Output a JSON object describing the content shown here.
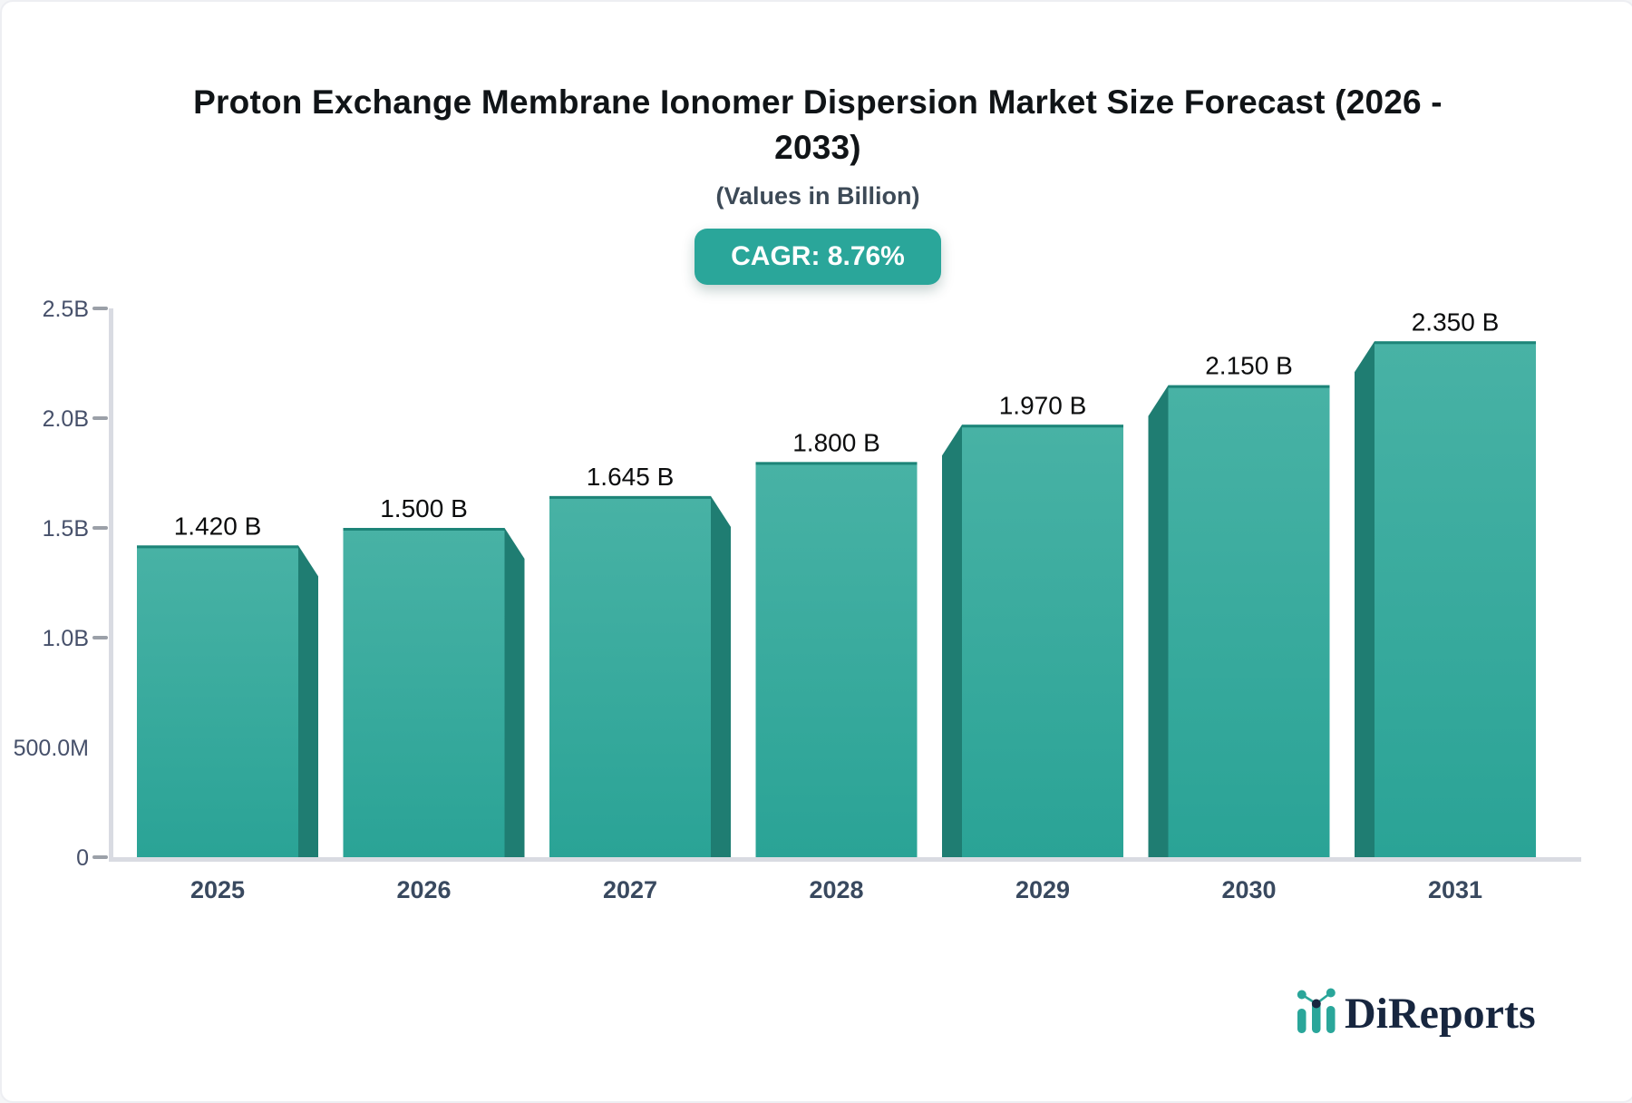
{
  "header": {
    "title": "Proton Exchange Membrane Ionomer Dispersion Market Size Forecast (2026 - 2033)",
    "title_lines": [
      "Proton Exchange Membrane Ionomer Dispersion Market Size Forecast (2026 -",
      "2033)"
    ],
    "subtitle": "(Values in Billion)",
    "cagr_badge": "CAGR: 8.76%"
  },
  "chart_data": {
    "type": "bar",
    "title": "Proton Exchange Membrane Ionomer Dispersion Market Size Forecast (2026 - 2033)",
    "subtitle": "(Values in Billion)",
    "categories": [
      "2025",
      "2026",
      "2027",
      "2028",
      "2029",
      "2030",
      "2031"
    ],
    "values": [
      1.42,
      1.5,
      1.645,
      1.8,
      1.97,
      2.15,
      2.35
    ],
    "value_labels": [
      "1.420 B",
      "1.500 B",
      "1.645 B",
      "1.800 B",
      "1.970 B",
      "2.150 B",
      "2.350 B"
    ],
    "unit": "Billion USD",
    "xlabel": "",
    "ylabel": "",
    "ylim": [
      0,
      2.5
    ],
    "y_ticks": [
      {
        "label": "2.5B",
        "value": 2.5,
        "dash": true
      },
      {
        "label": "2.0B",
        "value": 2.0,
        "dash": true
      },
      {
        "label": "1.5B",
        "value": 1.5,
        "dash": true
      },
      {
        "label": "1.0B",
        "value": 1.0,
        "dash": true
      },
      {
        "label": "500.0M",
        "value": 0.5,
        "dash": false
      },
      {
        "label": "0",
        "value": 0,
        "dash": true
      }
    ],
    "grid": false,
    "legend": false,
    "style": "3d-extruded-center-perspective"
  },
  "colors": {
    "accent_teal": "#2aa69a",
    "bar_face_top": "#48b2a5",
    "bar_face_bottom": "#2aa396",
    "bar_side": "#1f7d72",
    "bar_top_edge": "#1d8478",
    "axis_line": "#d9dbe2",
    "tick_dash": "#9ba0a8",
    "y_label": "#46506a",
    "x_label": "#39495f",
    "value_label": "#0c0d0e",
    "logo_navy": "#17263f"
  },
  "logo": {
    "text": "DiReports"
  }
}
